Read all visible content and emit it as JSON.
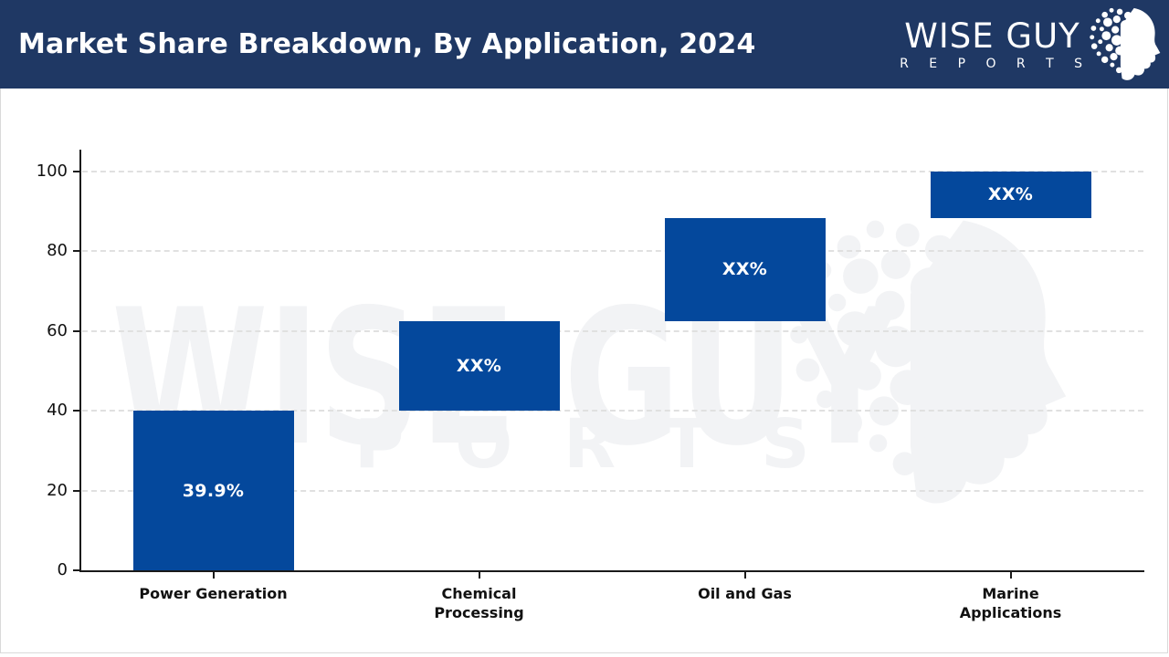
{
  "header": {
    "title": "Market Share Breakdown, By Application, 2024",
    "bg_color": "#1F3864",
    "logo": {
      "line1": "WISE GUY",
      "line2": "R E P O R T S"
    }
  },
  "watermark": {
    "line1": "WISE GUY",
    "line2": "PORTS"
  },
  "chart_data": {
    "type": "bar",
    "variant": "waterfall",
    "title": "Market Share Breakdown, By Application, 2024",
    "categories": [
      {
        "name": "Power Generation",
        "lines": [
          "Power Generation"
        ]
      },
      {
        "name": "Chemical Processing",
        "lines": [
          "Chemical",
          "Processing"
        ]
      },
      {
        "name": "Oil and Gas",
        "lines": [
          "Oil and Gas"
        ]
      },
      {
        "name": "Marine Applications",
        "lines": [
          "Marine",
          "Applications"
        ]
      }
    ],
    "segments": [
      {
        "category": "Power Generation",
        "start": 0,
        "end": 39.9,
        "label": "39.9%"
      },
      {
        "category": "Chemical Processing",
        "start": 39.9,
        "end": 62.4,
        "label": "XX%"
      },
      {
        "category": "Oil and Gas",
        "start": 62.4,
        "end": 88.3,
        "label": "XX%"
      },
      {
        "category": "Marine Applications",
        "start": 88.3,
        "end": 100,
        "label": "XX%"
      }
    ],
    "ylim": [
      0,
      100
    ],
    "yticks": [
      0,
      20,
      40,
      60,
      80,
      100
    ],
    "grid": {
      "horizontal": true,
      "style": "dashed"
    },
    "legend": "none",
    "bar_color": "#04489C",
    "bar_label_color": "#FFFFFF",
    "xlabel": "",
    "ylabel": ""
  }
}
